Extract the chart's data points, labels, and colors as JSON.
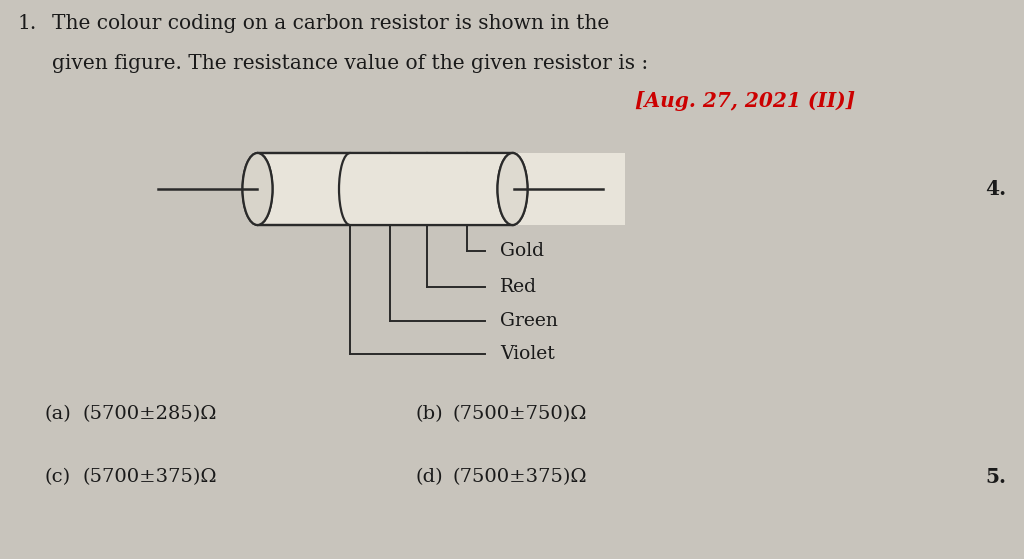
{
  "title_number": "1.",
  "title_text1": "The colour coding on a carbon resistor is shown in the",
  "title_text2": "given figure. The resistance value of the given resistor is :",
  "date_label": "[Aug. 27, 2021 (II)]",
  "band_labels": [
    "Gold",
    "Red",
    "Green",
    "Violet"
  ],
  "options": [
    {
      "label": "(a)",
      "value": "(5700±285)Ω"
    },
    {
      "label": "(b)",
      "value": "(7500±750)Ω"
    },
    {
      "label": "(c)",
      "value": "(5700±375)Ω"
    },
    {
      "label": "(d)",
      "value": "(7500±375)Ω"
    }
  ],
  "side_numbers": [
    "4.",
    "5."
  ],
  "bg_color": "#c8c4bc",
  "text_color": "#1a1a1a",
  "date_color": "#cc0000",
  "title_fontsize": 14.5,
  "option_fontsize": 14,
  "label_fontsize": 13.5,
  "resistor_body_color": "#e8e4da",
  "resistor_edge_color": "#2a2a2a",
  "line_color": "#2a2a2a"
}
